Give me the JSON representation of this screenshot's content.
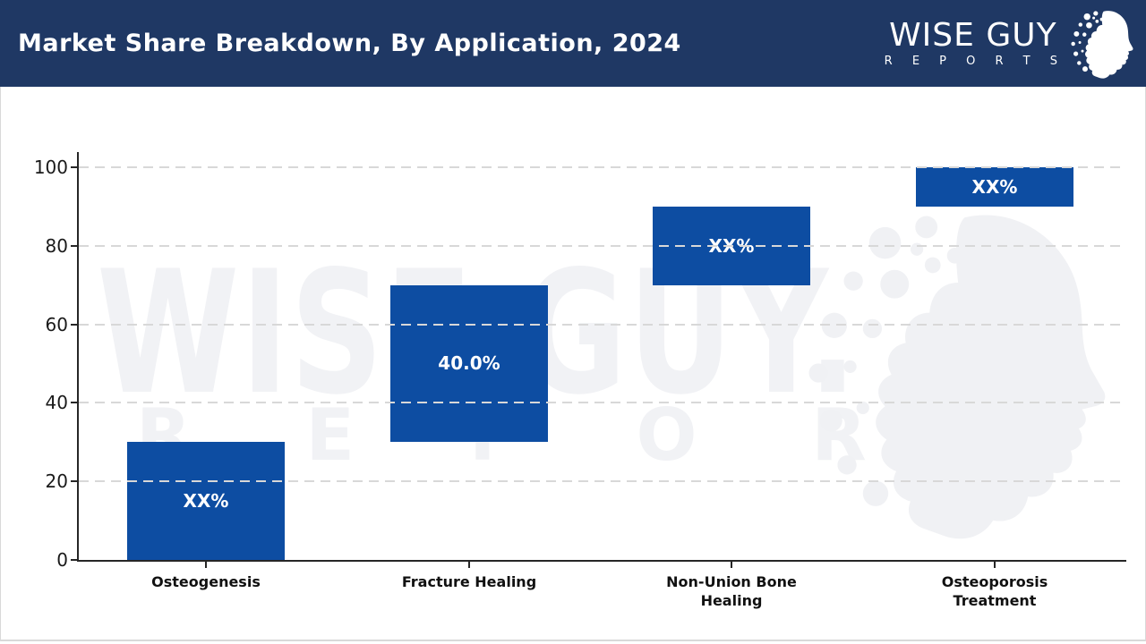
{
  "header": {
    "title": "Market Share Breakdown, By Application, 2024",
    "logo": {
      "name": "WISE GUY",
      "tagline": "R E P O R T S"
    }
  },
  "watermark": {
    "text": "WISE GUY.",
    "tagline": "R E P O R T S"
  },
  "chart_data": {
    "type": "bar",
    "variant": "floating-segment-waterfall",
    "title": "Market Share Breakdown, By Application, 2024",
    "categories": [
      "Osteogenesis",
      "Fracture Healing",
      "Non-Union Bone Healing",
      "Osteoporosis Treatment"
    ],
    "segments": [
      {
        "category": "Osteogenesis",
        "from": 0,
        "to": 30,
        "label": "XX%"
      },
      {
        "category": "Fracture Healing",
        "from": 30,
        "to": 70,
        "label": "40.0%"
      },
      {
        "category": "Non-Union Bone Healing",
        "from": 70,
        "to": 90,
        "label": "XX%"
      },
      {
        "category": "Osteoporosis Treatment",
        "from": 90,
        "to": 100,
        "label": "XX%"
      }
    ],
    "ylim": [
      0,
      100
    ],
    "yticks": [
      0,
      20,
      40,
      60,
      80,
      100
    ],
    "xlabel": "",
    "ylabel": "",
    "grid": "horizontal-dashed",
    "legend": "none",
    "bar_color": "#0d4da2"
  },
  "colors": {
    "header_bg": "#1f3864",
    "bar": "#0d4da2",
    "grid": "#d8d8d8",
    "axis": "#262626",
    "tick_text": "#1a1a1a",
    "value_label": "#ffffff",
    "watermark": "#f1f2f5"
  }
}
